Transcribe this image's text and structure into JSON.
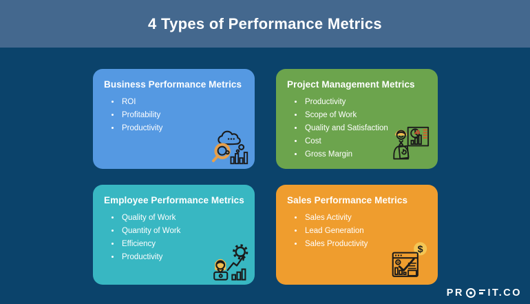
{
  "header": {
    "title": "4 Types of Performance Metrics"
  },
  "cards": [
    {
      "title": "Business Performance Metrics",
      "color": "#5599e2",
      "icon": "magnifier-analytics-icon",
      "items": [
        "ROI",
        "Profitability",
        "Productivity"
      ]
    },
    {
      "title": "Project Management Metrics",
      "color": "#6ca44d",
      "icon": "presenter-chart-icon",
      "items": [
        "Productivity",
        "Scope of Work",
        "Quality and Satisfaction",
        "Cost",
        "Gross Margin"
      ]
    },
    {
      "title": "Employee Performance Metrics",
      "color": "#38b7c2",
      "icon": "employee-growth-icon",
      "items": [
        "Quality of Work",
        "Quantity of Work",
        "Efficiency",
        "Productivity"
      ]
    },
    {
      "title": "Sales Performance Metrics",
      "color": "#ef9d2e",
      "icon": "sales-report-icon",
      "items": [
        "Sales Activity",
        "Lead Generation",
        "Sales Productivity"
      ]
    }
  ],
  "footer": {
    "logo_full": "PROFIT.CO",
    "logo_pr": "PR",
    "logo_rest": "IT.CO"
  },
  "colors": {
    "background": "#0b436b",
    "header_band": "#44688e",
    "text": "#ffffff",
    "icon_stroke": "#1b1b1b",
    "icon_accent_orange": "#e8a04b",
    "icon_accent_yellow": "#f2c35c"
  }
}
